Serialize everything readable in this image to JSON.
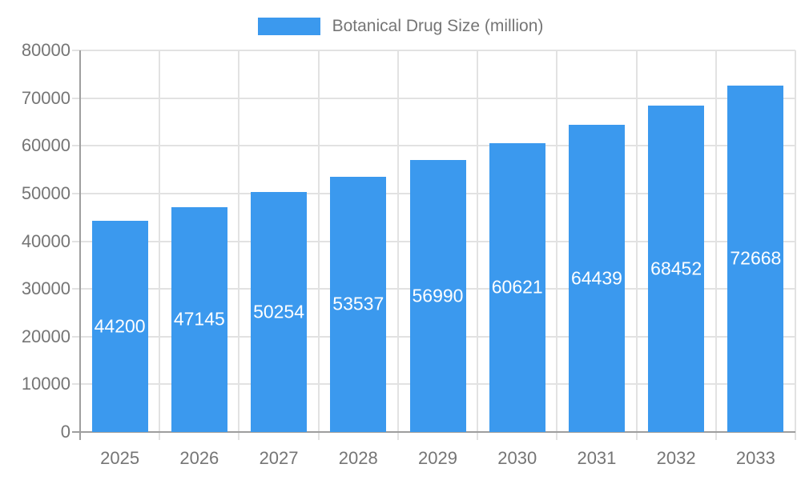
{
  "legend": {
    "label": "Botanical Drug Size (million)"
  },
  "colors": {
    "bar": "#3b99ee",
    "grid": "#e2e2e2",
    "axis": "#9e9e9e",
    "muted_text": "#757575",
    "value_label": "#ffffff",
    "background": "#ffffff"
  },
  "chart_data": {
    "type": "bar",
    "title": "",
    "xlabel": "",
    "ylabel": "",
    "categories": [
      "2025",
      "2026",
      "2027",
      "2028",
      "2029",
      "2030",
      "2031",
      "2032",
      "2033"
    ],
    "series": [
      {
        "name": "Botanical Drug Size (million)",
        "values": [
          44200,
          47145,
          50254,
          53537,
          56990,
          60621,
          64439,
          68452,
          72668
        ]
      }
    ],
    "value_labels_position": "inside-center",
    "ylim": [
      0,
      80000
    ],
    "yticks": [
      0,
      10000,
      20000,
      30000,
      40000,
      50000,
      60000,
      70000,
      80000
    ],
    "grid": true,
    "legend_position": "top"
  }
}
